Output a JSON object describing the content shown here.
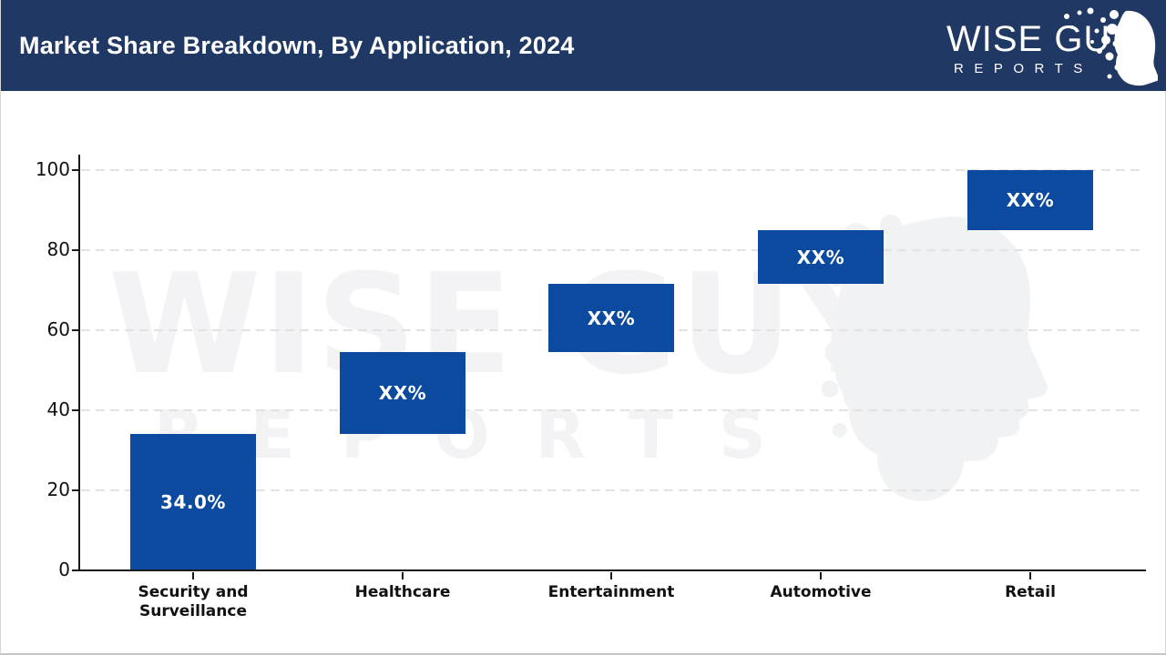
{
  "header": {
    "title": "Market Share Breakdown, By Application, 2024",
    "logo": {
      "line1": "WISE GUY",
      "line2": "REPORTS"
    }
  },
  "watermark": {
    "line1": "WISE GUY",
    "line2": "REPORTS"
  },
  "chart_data": {
    "type": "bar",
    "subtype": "waterfall",
    "title": "Market Share Breakdown, By Application, 2024",
    "categories": [
      "Security and Surveillance",
      "Healthcare",
      "Entertainment",
      "Automotive",
      "Retail"
    ],
    "segments": [
      {
        "category": "Security and Surveillance",
        "start": 0,
        "end": 34.0,
        "label": "34.0%"
      },
      {
        "category": "Healthcare",
        "start": 34.0,
        "end": 54.5,
        "label": "XX%"
      },
      {
        "category": "Entertainment",
        "start": 54.5,
        "end": 71.5,
        "label": "XX%"
      },
      {
        "category": "Automotive",
        "start": 71.5,
        "end": 85.0,
        "label": "XX%"
      },
      {
        "category": "Retail",
        "start": 85.0,
        "end": 100.0,
        "label": "XX%"
      }
    ],
    "y_ticks": [
      0,
      20,
      40,
      60,
      80,
      100
    ],
    "ylim": [
      0,
      104
    ],
    "xlabel": "",
    "ylabel": "",
    "grid": "dashed-horizontal",
    "legend": "none",
    "bar_color": "#0b4a9f",
    "header_color": "#203864",
    "axis_color": "#1a1a1a",
    "gridline_color": "#e2e2e2"
  }
}
